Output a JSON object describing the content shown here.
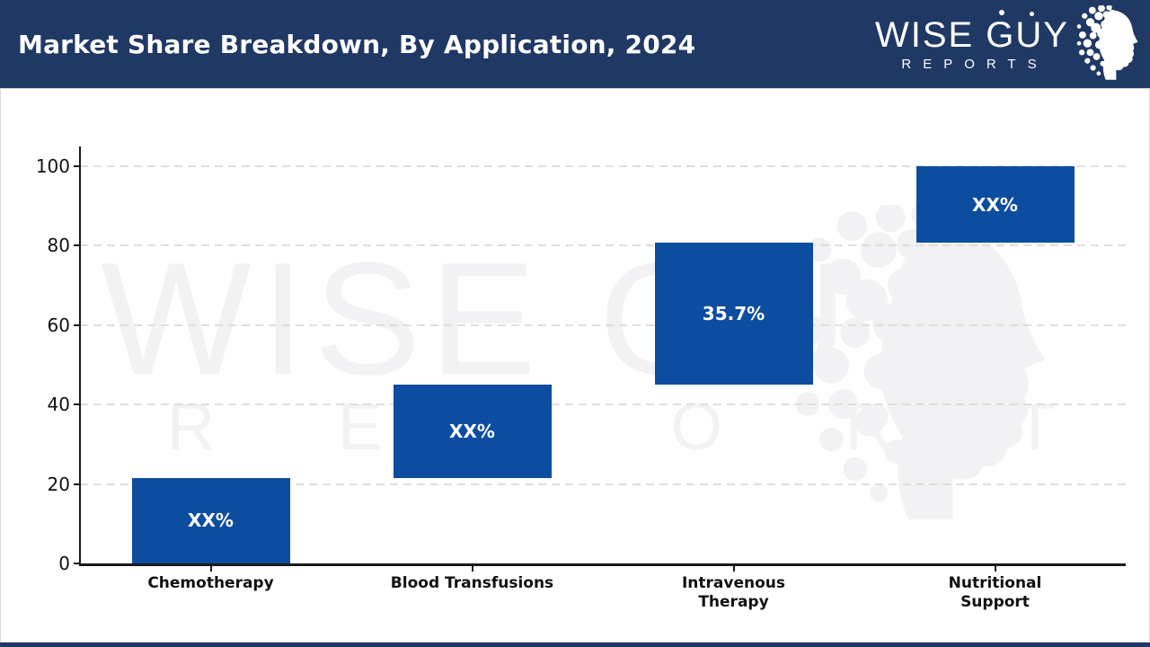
{
  "header": {
    "title": "Market Share Breakdown, By Application, 2024",
    "logo": {
      "line1": "WISE GUY",
      "line2": "REPORTS"
    }
  },
  "watermark": {
    "line1": "WISE GU",
    "line2": "R E P O R T S"
  },
  "colors": {
    "header_bg": "#203864",
    "footer_bg": "#203864",
    "bar": "#0d4da0",
    "bar_label": "#ffffff",
    "grid": "#dedede",
    "axis": "#1a1a1a",
    "tick_text": "#111111",
    "watermark": "#f2f2f4"
  },
  "chart_data": {
    "type": "bar",
    "subtype": "waterfall",
    "title": "Market Share Breakdown, By Application, 2024",
    "xlabel": "",
    "ylabel": "",
    "ylim": [
      0,
      100
    ],
    "yticks": [
      0,
      20,
      40,
      60,
      80,
      100
    ],
    "grid": "dashed-horizontal",
    "legend": "none",
    "categories": [
      "Chemotherapy",
      "Blood Transfusions",
      "Intravenous\nTherapy",
      "Nutritional\nSupport"
    ],
    "segments": [
      {
        "category": "Chemotherapy",
        "start": 0,
        "end": 21.5,
        "label": "XX%"
      },
      {
        "category": "Blood Transfusions",
        "start": 21.5,
        "end": 45.0,
        "label": "XX%"
      },
      {
        "category": "Intravenous Therapy",
        "start": 45.0,
        "end": 80.7,
        "label": "35.7%"
      },
      {
        "category": "Nutritional Support",
        "start": 80.7,
        "end": 100,
        "label": "XX%"
      }
    ]
  }
}
